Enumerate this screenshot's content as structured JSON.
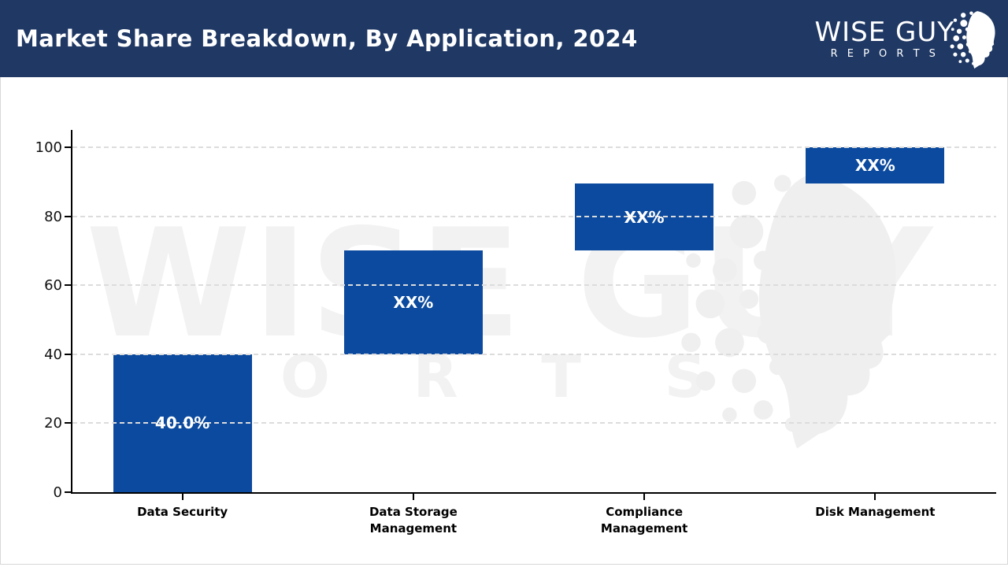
{
  "header": {
    "title": "Market Share Breakdown, By Application, 2024",
    "logo_line1": "WISE GUY",
    "logo_line2": "R E P O R T S"
  },
  "watermark": {
    "main": "WISE GUY",
    "sub": "P O R T S"
  },
  "colors": {
    "header_bg": "#1F3864",
    "bar": "#0B4A9E",
    "grid": "#DCDCDC",
    "axis": "#000000",
    "panel_border": "#D7D7D7",
    "watermark": "#F2F2F2"
  },
  "chart_data": {
    "type": "bar",
    "subtype": "waterfall",
    "title": "Market Share Breakdown, By Application, 2024",
    "categories": [
      "Data Security",
      "Data Storage Management",
      "Compliance Management",
      "Disk Management"
    ],
    "segments": [
      {
        "category": "Data Security",
        "start": 0,
        "end": 40,
        "label": "40.0%"
      },
      {
        "category": "Data Storage Management",
        "start": 40,
        "end": 70,
        "label": "XX%"
      },
      {
        "category": "Compliance Management",
        "start": 70,
        "end": 89.4,
        "label": "XX%"
      },
      {
        "category": "Disk Management",
        "start": 89.4,
        "end": 100,
        "label": "XX%"
      }
    ],
    "y_ticks": [
      0,
      20,
      40,
      60,
      80,
      100
    ],
    "ylim": [
      0,
      105
    ],
    "xlabel": "",
    "ylabel": "",
    "grid": "horizontal-dashed",
    "legend": "none",
    "bar_color": "#0B4A9E"
  }
}
